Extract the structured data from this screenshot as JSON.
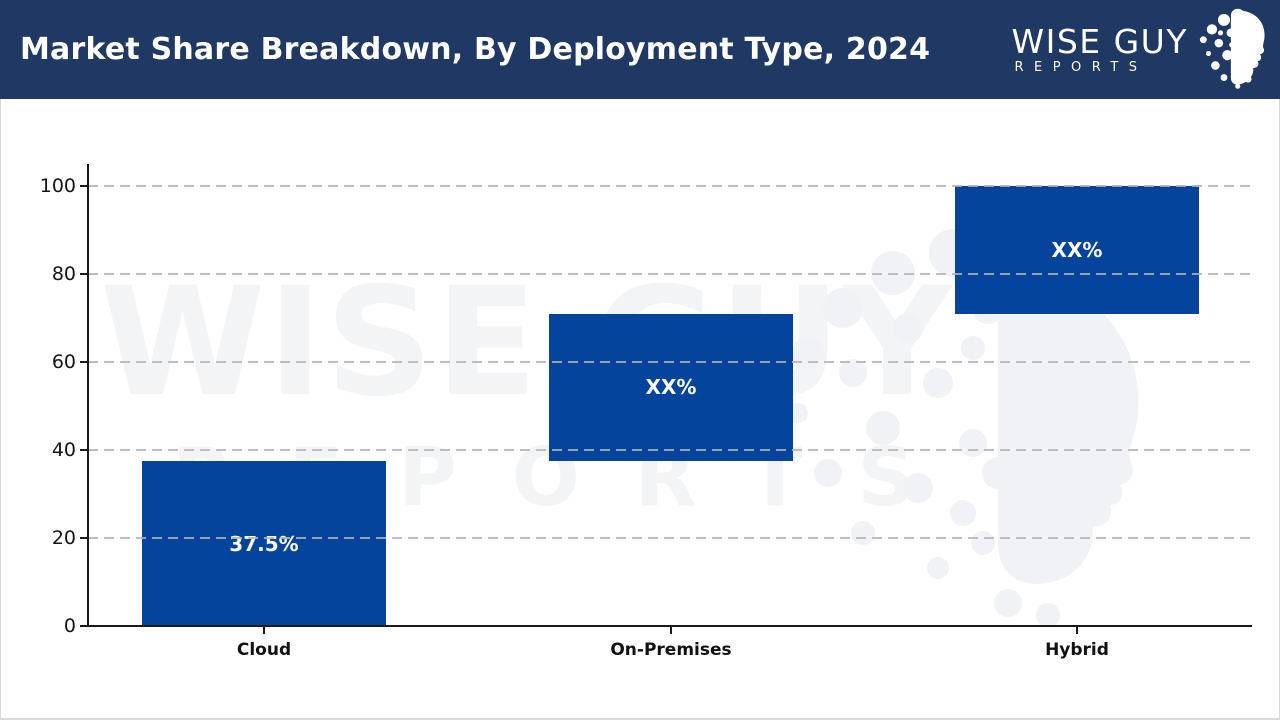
{
  "header": {
    "title": "Market Share Breakdown, By Deployment Type, 2024",
    "bg_color": "#1F3864",
    "logo": {
      "line1": "WISE GUY",
      "line2": "REPORTS"
    }
  },
  "watermark": {
    "line1": "WISE GUY",
    "line2": "REPORTS"
  },
  "chart_data": {
    "type": "bar",
    "variant": "floating-segment-column",
    "title": "Market Share Breakdown, By Deployment Type, 2024",
    "categories": [
      "Cloud",
      "On-Premises",
      "Hybrid"
    ],
    "bars": [
      {
        "category": "Cloud",
        "start": 0,
        "end": 37.5,
        "label": "37.5%"
      },
      {
        "category": "On-Premises",
        "start": 37.5,
        "end": 71,
        "label": "XX%"
      },
      {
        "category": "Hybrid",
        "start": 71,
        "end": 100,
        "label": "XX%"
      }
    ],
    "ylim": [
      0,
      100
    ],
    "yticks": [
      0,
      20,
      40,
      60,
      80,
      100
    ],
    "xlabel": "",
    "ylabel": "",
    "grid": "horizontal-dashed",
    "legend": "none",
    "bar_color": "#04449C",
    "bar_label_color": "#FFFFFF",
    "axis_color": "#1a1a1a",
    "background_color": "#FFFFFF"
  }
}
